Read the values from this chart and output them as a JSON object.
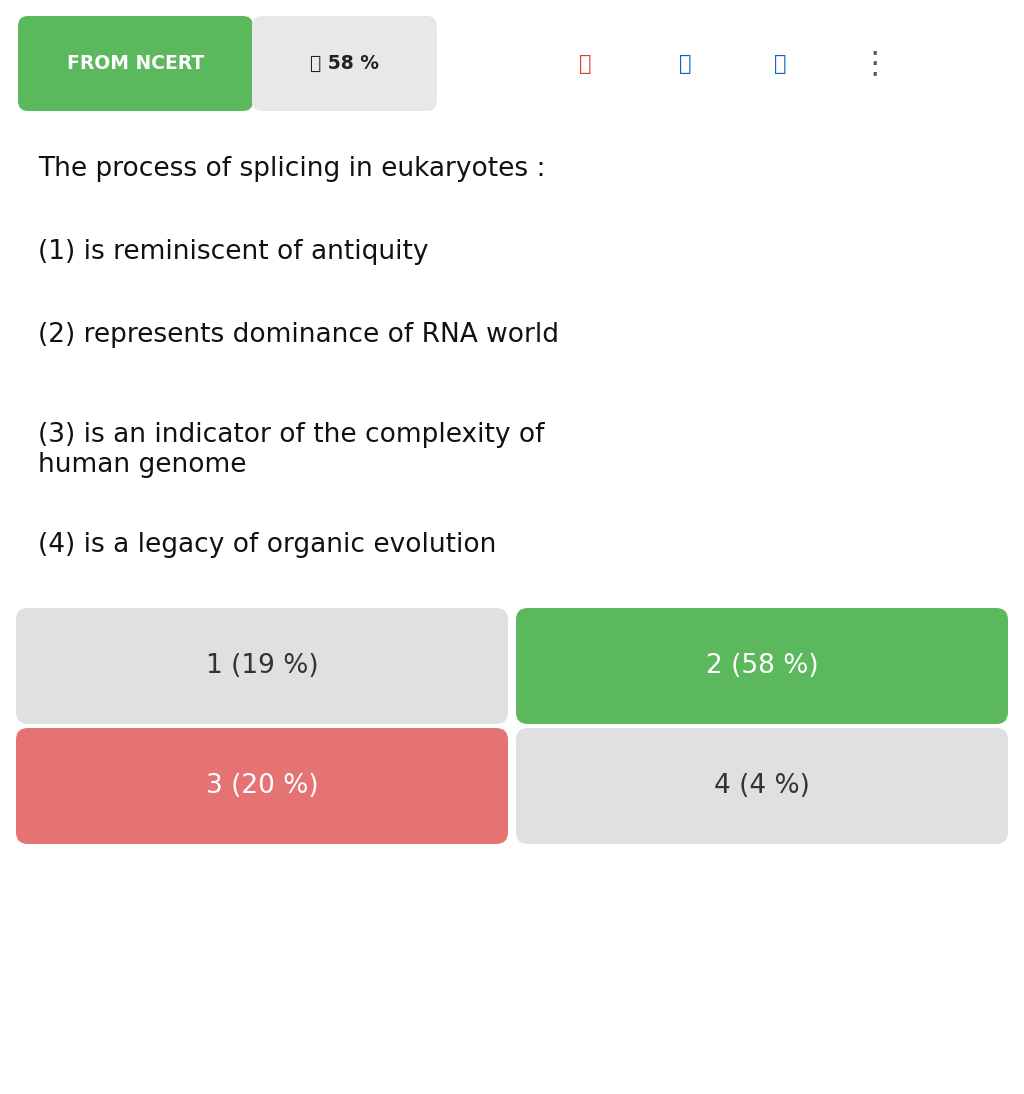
{
  "background_color": "#ffffff",
  "header_green_label": "FROM NCERT",
  "header_green_bg": "#5cb85c",
  "header_green_text_color": "#ffffff",
  "header_like_bg": "#e8e8e8",
  "header_like_text_color": "#222222",
  "question": "The process of splicing in eukaryotes :",
  "options": [
    "(1) is reminiscent of antiquity",
    "(2) represents dominance of RNA world",
    "(3) is an indicator of the complexity of\nhuman genome",
    "(4) is a legacy of organic evolution"
  ],
  "answer_buttons": [
    {
      "label": "1 (19 %)",
      "color": "#e0e0e0",
      "text_color": "#333333"
    },
    {
      "label": "2 (58 %)",
      "color": "#5cb85c",
      "text_color": "#ffffff"
    },
    {
      "label": "3 (20 %)",
      "color": "#e57373",
      "text_color": "#ffffff"
    },
    {
      "label": "4 (4 %)",
      "color": "#e0e0e0",
      "text_color": "#333333"
    }
  ],
  "question_fontsize": 19,
  "option_fontsize": 19,
  "button_fontsize": 19
}
